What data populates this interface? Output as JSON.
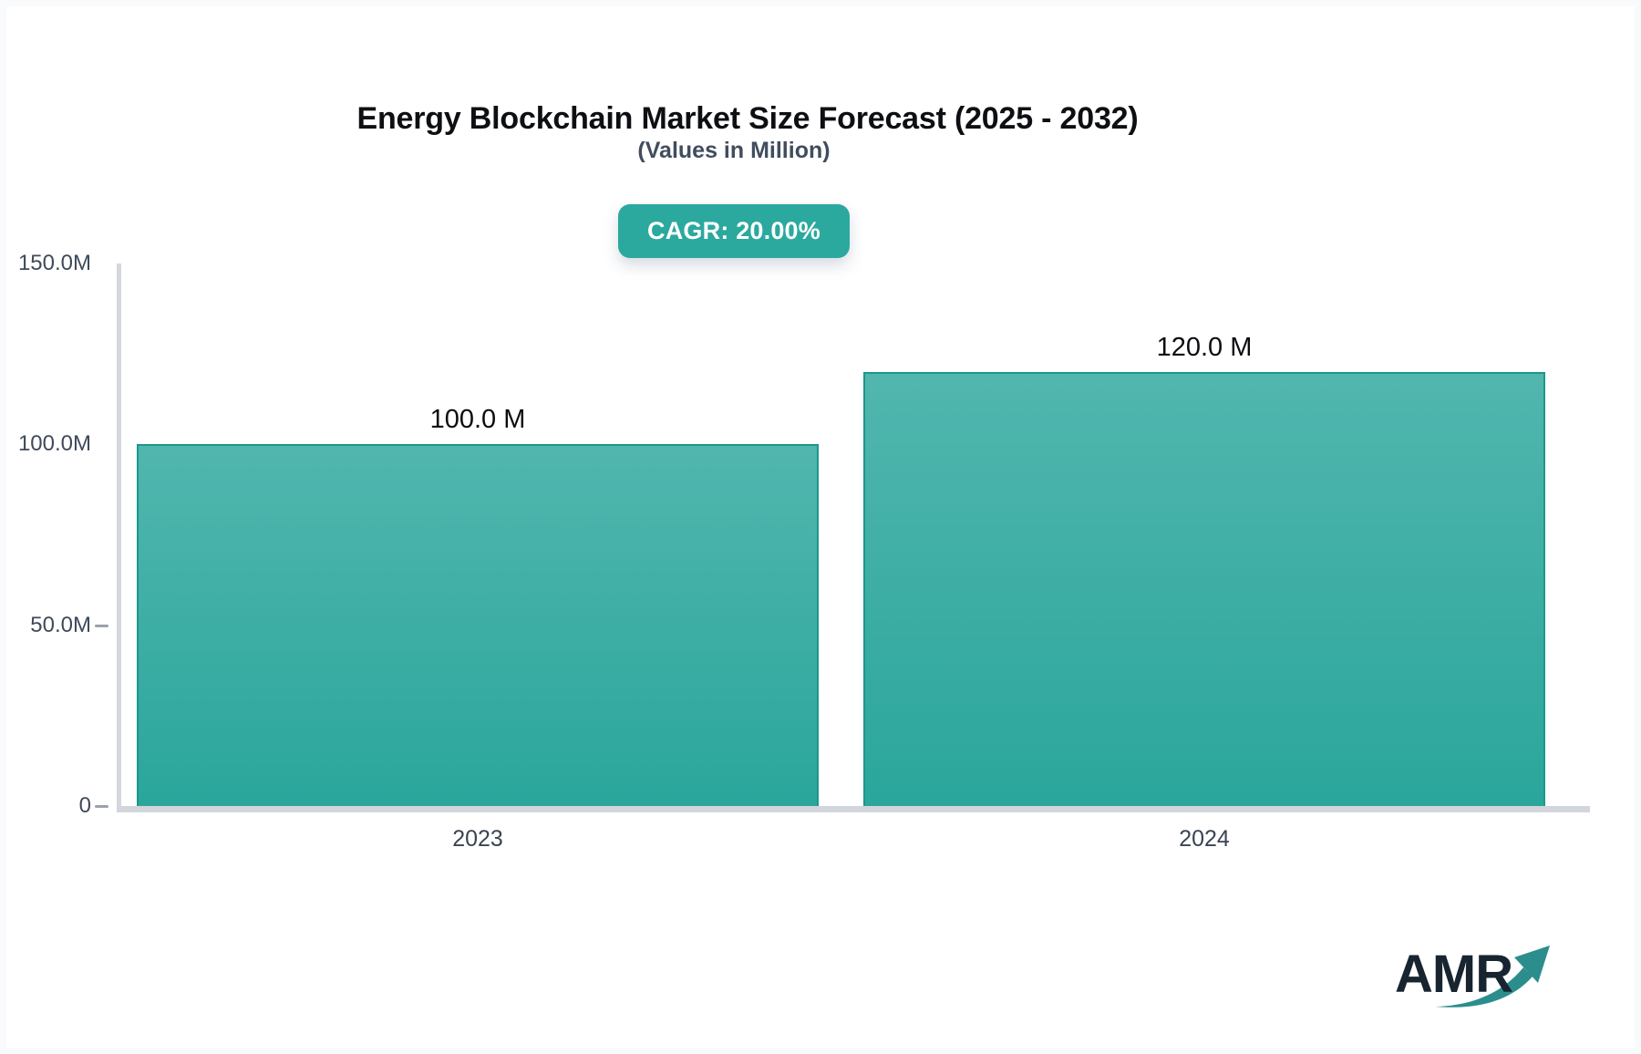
{
  "header": {
    "title": "Energy Blockchain Market Size Forecast (2025 - 2032)",
    "subtitle": "(Values in Million)"
  },
  "badge": {
    "label": "CAGR: 20.00%"
  },
  "chart_data": {
    "type": "bar",
    "title": "Energy Blockchain Market Size Forecast (2025 - 2032)",
    "subtitle": "(Values in Million)",
    "unit": "Million",
    "cagr_percent": 20.0,
    "categories": [
      "2023",
      "2024"
    ],
    "values": [
      100.0,
      120.0
    ],
    "value_labels": [
      "100.0 M",
      "120.0 M"
    ],
    "ylim": [
      0,
      150
    ],
    "yticks": [
      {
        "label": "150.0M",
        "value": 150,
        "dash": false
      },
      {
        "label": "100.0M",
        "value": 100,
        "dash": false
      },
      {
        "label": "50.0M",
        "value": 50,
        "dash": true
      },
      {
        "label": "0",
        "value": 0,
        "dash": true
      }
    ],
    "grid": false,
    "legend": false,
    "bar_color_top": "#51b6ae",
    "bar_color_bottom": "#2aa69b",
    "bar_border_color": "#1d978c"
  },
  "logo": {
    "text": "AMR",
    "arrow_color": "#2b8e8d",
    "text_color": "#182430"
  },
  "colors": {
    "accent_teal": "#2ba99e",
    "axis_line": "#d4d7dd",
    "tick_text": "#3f4a5a",
    "title_text": "#0d0f13",
    "background": "#ffffff"
  }
}
